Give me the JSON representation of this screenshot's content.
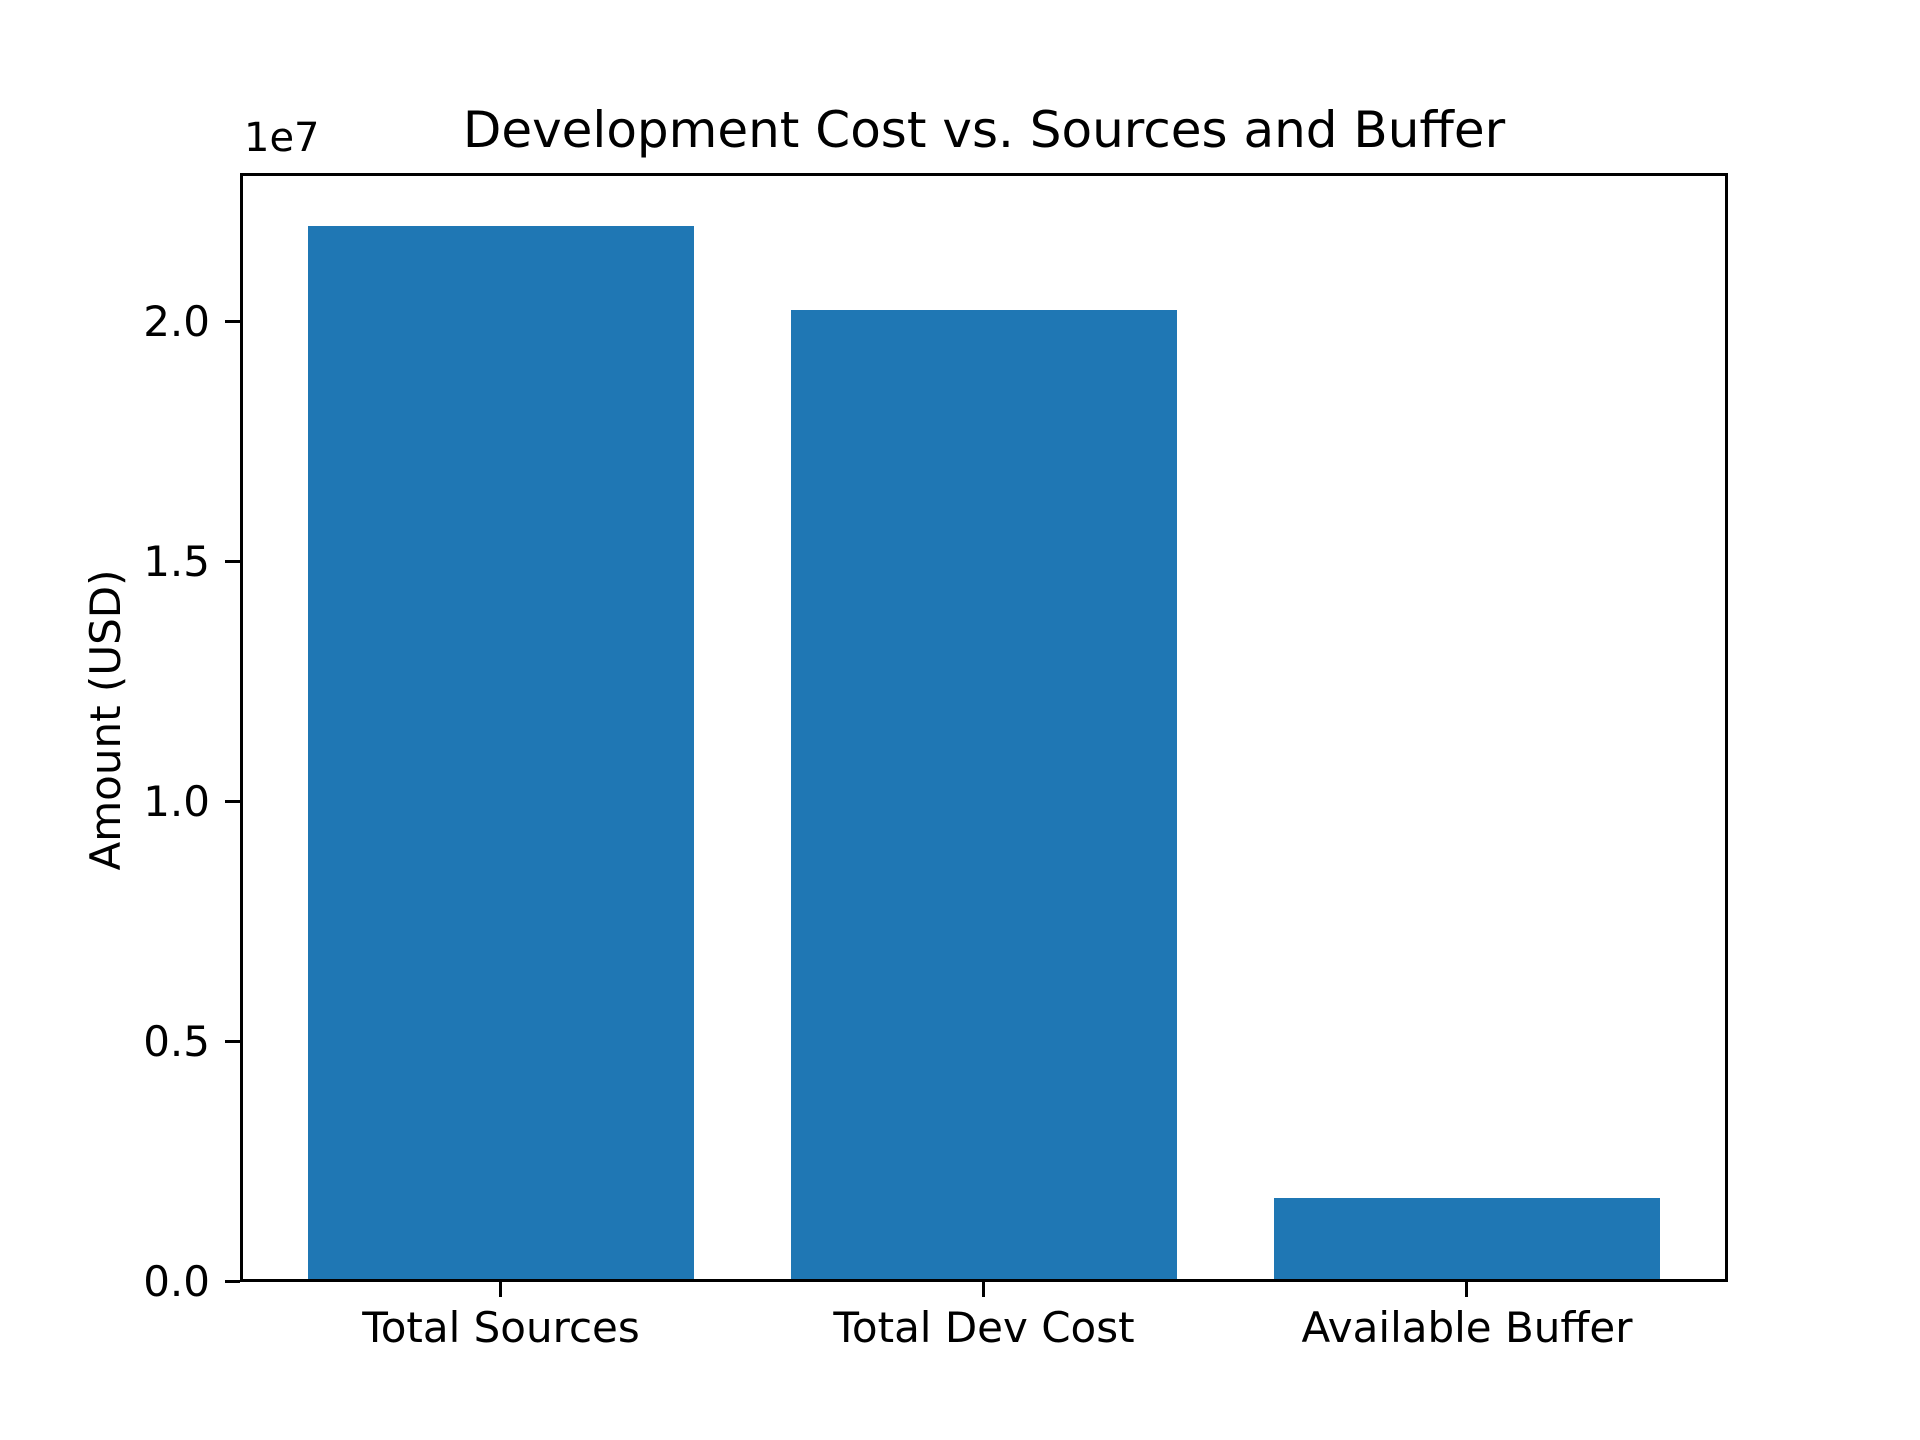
{
  "figure": {
    "background": "#ffffff",
    "text_color": "#000000",
    "axis_color": "#000000"
  },
  "chart_data": {
    "type": "bar",
    "title": "Development Cost vs. Sources and Buffer",
    "xlabel": "",
    "ylabel": "Amount (USD)",
    "y_offset_label": "1e7",
    "categories": [
      "Total Sources",
      "Total Dev Cost",
      "Available Buffer"
    ],
    "values": [
      22000000,
      20250000,
      1750000
    ],
    "bar_color": "#1f77b4",
    "ylim": [
      0,
      23100000
    ],
    "yticks": [
      0,
      5000000,
      10000000,
      15000000,
      20000000
    ],
    "ytick_labels": [
      "0.0",
      "0.5",
      "1.0",
      "1.5",
      "2.0"
    ],
    "grid": false,
    "legend_position": "none"
  }
}
